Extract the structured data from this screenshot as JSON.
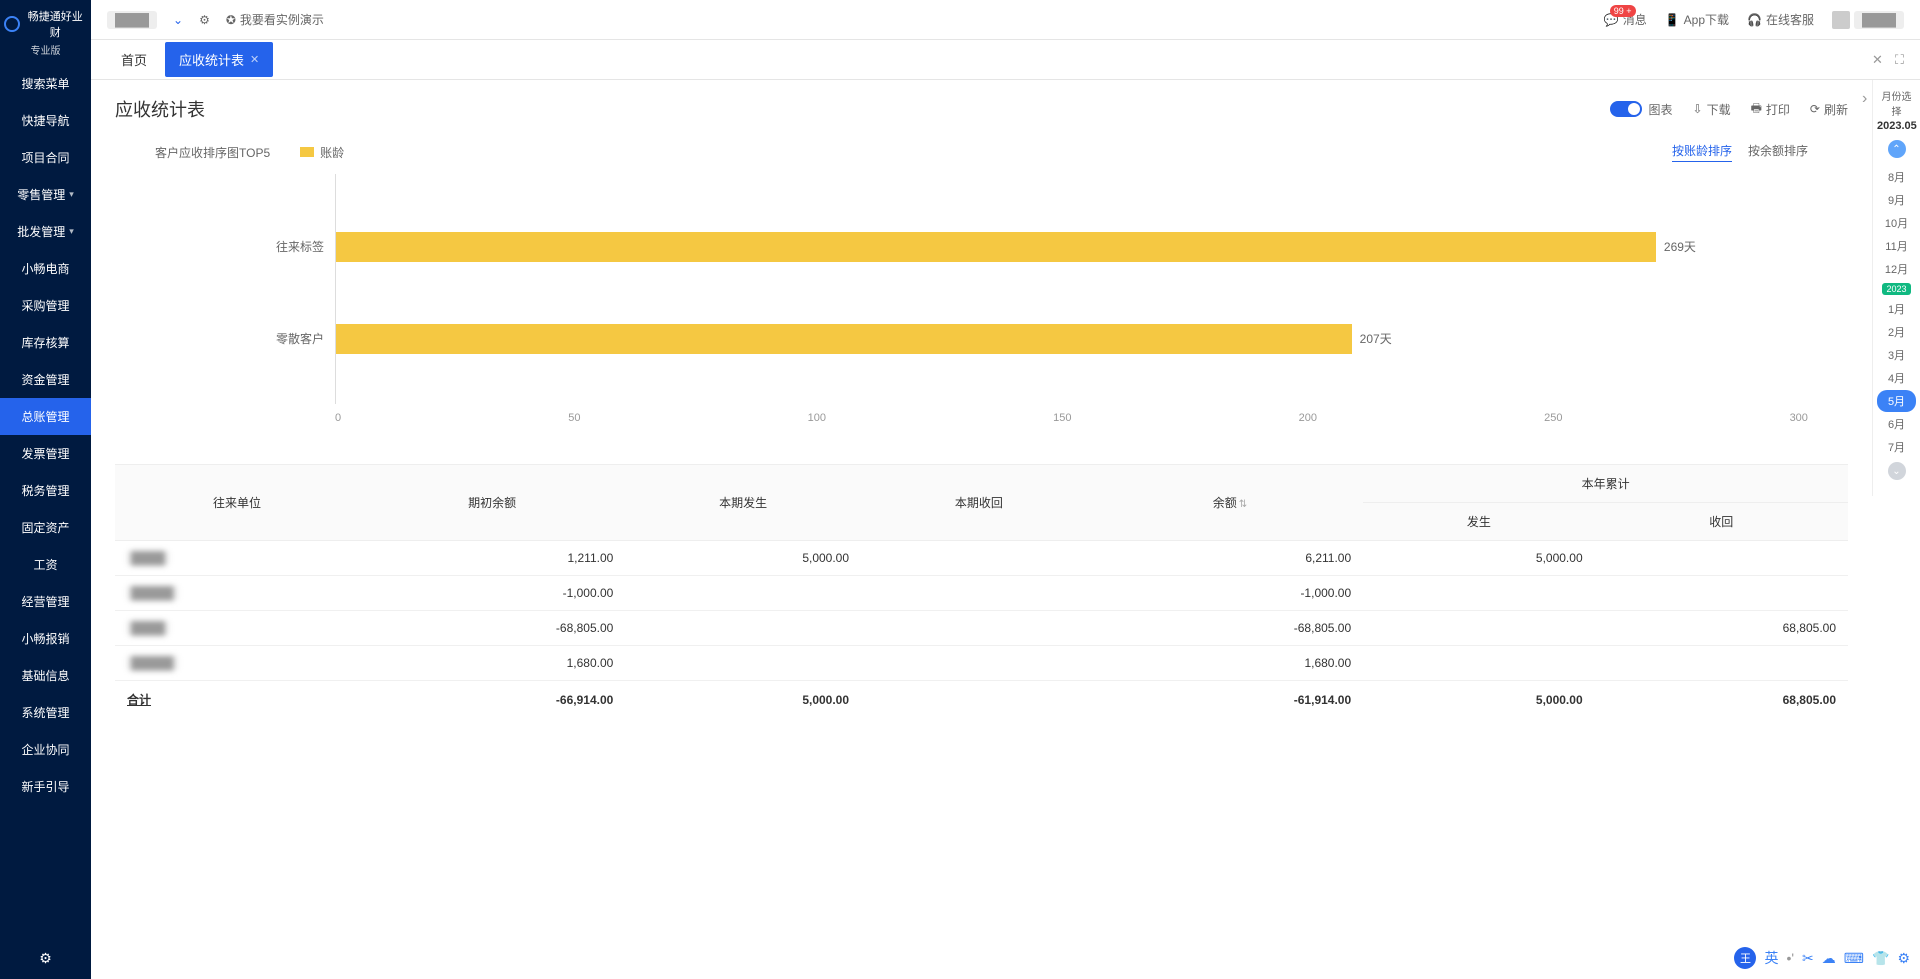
{
  "brand": {
    "name": "畅捷通好业财",
    "edition": "专业版"
  },
  "topbar": {
    "org_placeholder": "████",
    "demo_text": "我要看实例演示",
    "msg_label": "消息",
    "msg_badge": "99 +",
    "app_label": "App下载",
    "service_label": "在线客服",
    "user_placeholder": "████"
  },
  "sidebar": {
    "items": [
      {
        "label": "搜索菜单",
        "expand": false
      },
      {
        "label": "快捷导航",
        "expand": false
      },
      {
        "label": "项目合同",
        "expand": false
      },
      {
        "label": "零售管理",
        "expand": true
      },
      {
        "label": "批发管理",
        "expand": true
      },
      {
        "label": "小畅电商",
        "expand": false
      },
      {
        "label": "采购管理",
        "expand": false
      },
      {
        "label": "库存核算",
        "expand": false
      },
      {
        "label": "资金管理",
        "expand": false
      },
      {
        "label": "总账管理",
        "expand": false,
        "active": true
      },
      {
        "label": "发票管理",
        "expand": false
      },
      {
        "label": "税务管理",
        "expand": false
      },
      {
        "label": "固定资产",
        "expand": false
      },
      {
        "label": "工资",
        "expand": false
      },
      {
        "label": "经营管理",
        "expand": false
      },
      {
        "label": "小畅报销",
        "expand": false
      },
      {
        "label": "基础信息",
        "expand": false
      },
      {
        "label": "系统管理",
        "expand": false
      },
      {
        "label": "企业协同",
        "expand": false
      },
      {
        "label": "新手引导",
        "expand": false
      }
    ]
  },
  "tabs": {
    "items": [
      {
        "label": "首页",
        "closable": false
      },
      {
        "label": "应收统计表",
        "closable": true,
        "active": true
      }
    ]
  },
  "page": {
    "title": "应收统计表",
    "actions": {
      "chart_label": "图表",
      "download_label": "下载",
      "print_label": "打印",
      "refresh_label": "刷新"
    }
  },
  "chart": {
    "title": "客户应收排序图TOP5",
    "legend_label": "账龄",
    "sort_by_age": "按账龄排序",
    "sort_by_amount": "按余额排序",
    "x_max": 300,
    "x_ticks": [
      "0",
      "50",
      "100",
      "150",
      "200",
      "250",
      "300"
    ],
    "bars": [
      {
        "label": "往来标签",
        "value": 269,
        "display": "269天",
        "top_pct": 25
      },
      {
        "label": "零散客户",
        "value": 207,
        "display": "207天",
        "top_pct": 65
      }
    ],
    "bar_color": "#f5c842"
  },
  "table": {
    "headers": {
      "unit": "往来单位",
      "opening": "期初余额",
      "occur": "本期发生",
      "recover": "本期收回",
      "balance": "余额",
      "ytd": "本年累计",
      "ytd_occur": "发生",
      "ytd_recover": "收回"
    },
    "rows": [
      {
        "unit": "████",
        "opening": "1,211.00",
        "occur": "5,000.00",
        "recover": "",
        "balance": "6,211.00",
        "ytd_occur": "5,000.00",
        "ytd_recover": ""
      },
      {
        "unit": "█████",
        "opening": "-1,000.00",
        "occur": "",
        "recover": "",
        "balance": "-1,000.00",
        "ytd_occur": "",
        "ytd_recover": ""
      },
      {
        "unit": "████",
        "opening": "-68,805.00",
        "occur": "",
        "recover": "",
        "balance": "-68,805.00",
        "ytd_occur": "",
        "ytd_recover": "68,805.00"
      },
      {
        "unit": "█████",
        "opening": "1,680.00",
        "occur": "",
        "recover": "",
        "balance": "1,680.00",
        "ytd_occur": "",
        "ytd_recover": ""
      }
    ],
    "total": {
      "label": "合计",
      "opening": "-66,914.00",
      "occur": "5,000.00",
      "recover": "",
      "balance": "-61,914.00",
      "ytd_occur": "5,000.00",
      "ytd_recover": "68,805.00"
    }
  },
  "month_panel": {
    "title": "月份选择",
    "current": "2023.05",
    "year_badge": "2023",
    "months_top": [
      "8月",
      "9月",
      "10月",
      "11月",
      "12月"
    ],
    "months_bottom": [
      "1月",
      "2月",
      "3月",
      "4月",
      "5月",
      "6月",
      "7月"
    ],
    "active_month": "5月"
  },
  "bottom_bar": {
    "ime": "王",
    "lang": "英"
  }
}
